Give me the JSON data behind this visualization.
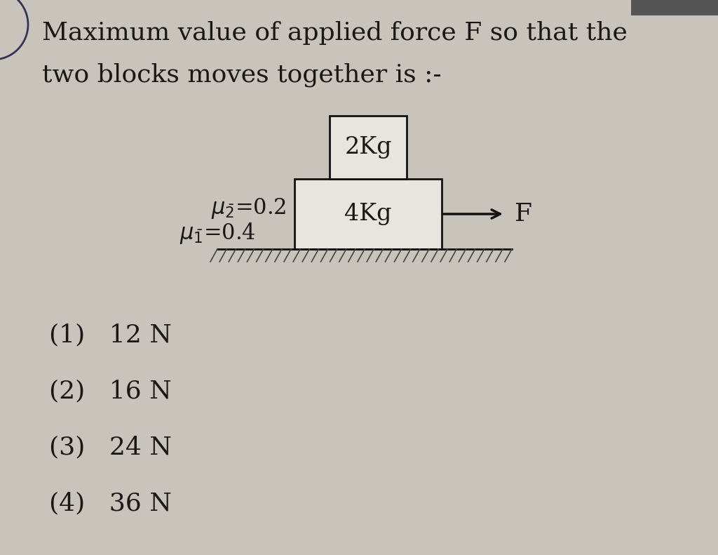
{
  "background_color": "#c8c4bc",
  "title_line1": "Maximum value of applied force F so that the",
  "title_line2": "two blocks moves together is :-",
  "title_fontsize": 26,
  "title_color": "#1a1814",
  "options": [
    "(1)   12 N",
    "(2)   16 N",
    "(3)   24 N",
    "(4)   36 N"
  ],
  "options_fontsize": 26,
  "options_color": "#1a1814",
  "block_bottom_label": "4Kg",
  "block_top_label": "2Kg",
  "block_color": "#e8e5e0",
  "block_edge_color": "#111111",
  "block_linewidth": 2.0,
  "mu_fontsize": 22,
  "arrow_label": "F",
  "arrow_color": "#111111",
  "hatch_color": "#444444",
  "circle_edge_color": "#333355"
}
